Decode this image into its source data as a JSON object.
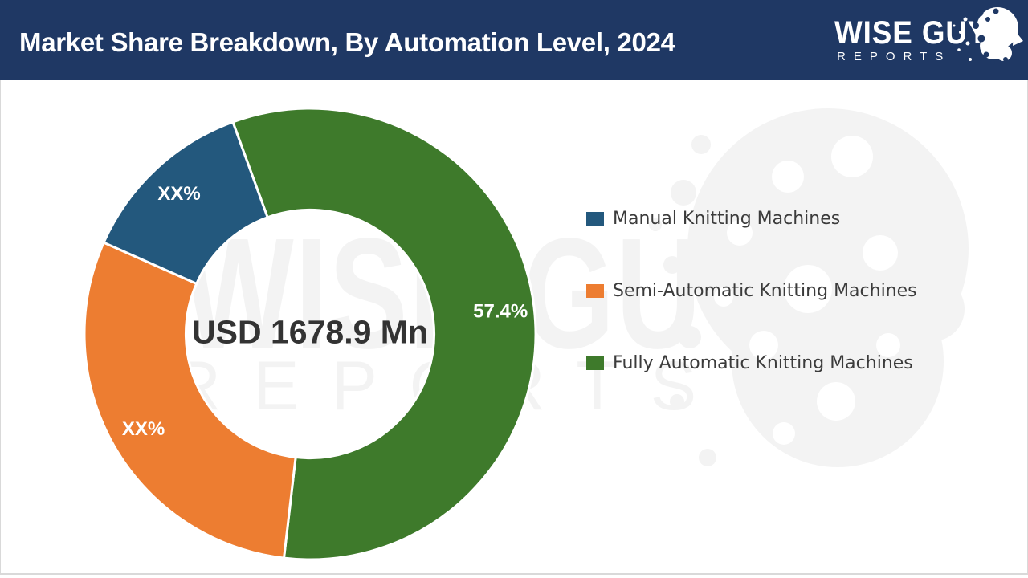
{
  "header": {
    "title": "Market Share Breakdown, By Automation Level, 2024",
    "logo": {
      "name": "WISE GUY",
      "tagline": "REPORTS"
    }
  },
  "watermark": {
    "line1": "WISE GUY",
    "line2": "REPORTS"
  },
  "chart_data": {
    "type": "pie",
    "subtype": "donut",
    "title": "Market Share Breakdown, By Automation Level, 2024",
    "center_label": "USD 1678.9 Mn",
    "start_angle_deg": -20,
    "direction": "clockwise",
    "inner_radius_ratio": 0.55,
    "legend_position": "right",
    "slices": [
      {
        "name": "Fully Automatic Knitting Machines",
        "label": "57.4%",
        "value_pct": 57.4,
        "masked": false,
        "color": "#3E7A2B"
      },
      {
        "name": "Semi-Automatic Knitting Machines",
        "label": "XX%",
        "value_pct": 29.8,
        "masked": true,
        "color": "#ED7D31"
      },
      {
        "name": "Manual Knitting Machines",
        "label": "XX%",
        "value_pct": 12.8,
        "masked": true,
        "color": "#23587D"
      }
    ],
    "legend": [
      {
        "label": "Manual Knitting Machines",
        "color": "#23587D"
      },
      {
        "label": "Semi-Automatic Knitting Machines",
        "color": "#ED7D31"
      },
      {
        "label": "Fully Automatic Knitting Machines",
        "color": "#3E7A2B"
      }
    ]
  }
}
